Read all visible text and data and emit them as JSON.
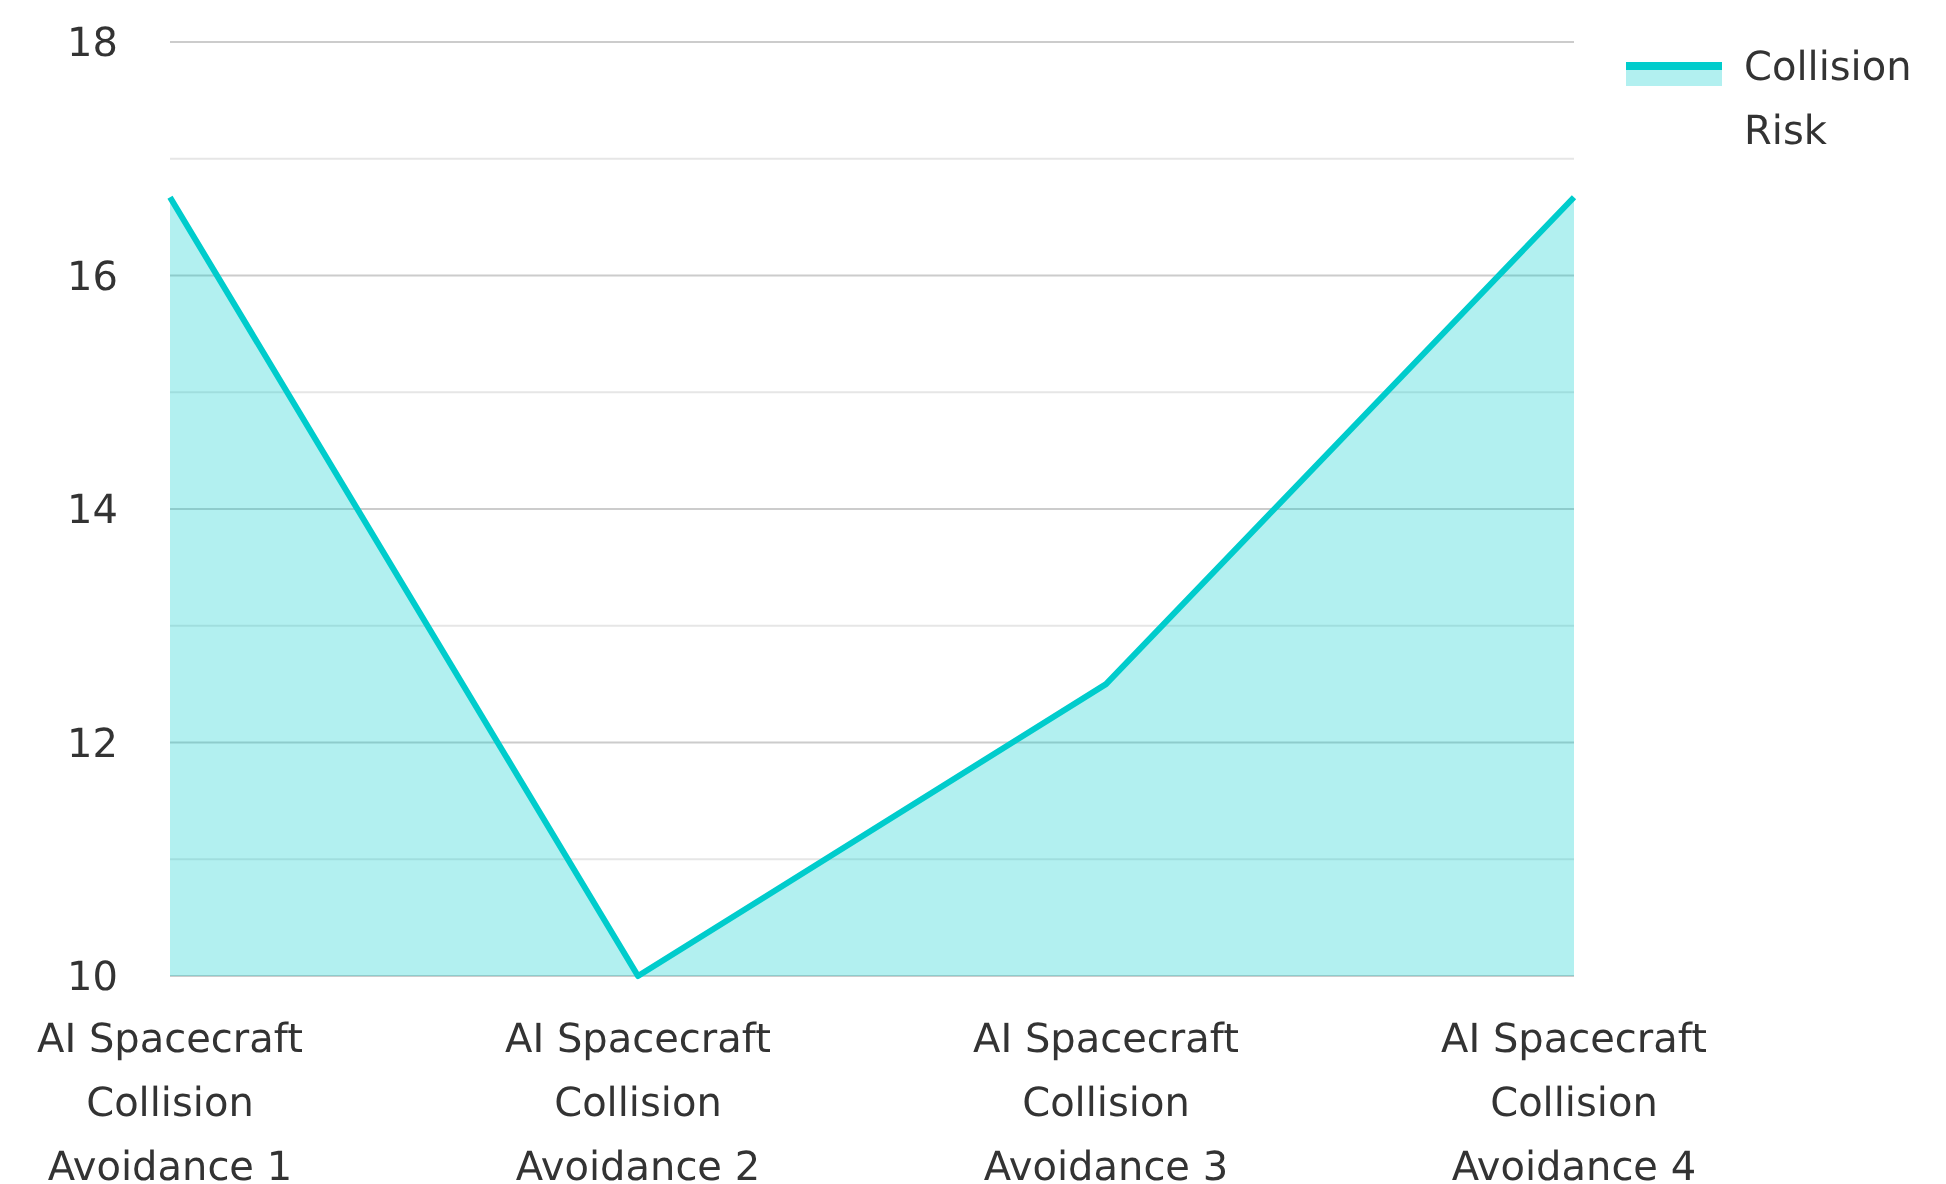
{
  "chart_data": {
    "type": "area",
    "categories": [
      "AI Spacecraft Collision Avoidance 1",
      "AI Spacecraft Collision Avoidance 2",
      "AI Spacecraft Collision Avoidance 3",
      "AI Spacecraft Collision Avoidance 4"
    ],
    "series": [
      {
        "name": "Collision Risk",
        "color": "#00cccc",
        "values": [
          16.67,
          10,
          12.5,
          16.67
        ]
      }
    ],
    "ylim": [
      10,
      18
    ],
    "yticks": [
      10,
      {
        "value": 11,
        "label": null
      },
      12,
      {
        "value": 13,
        "label": null
      },
      14,
      {
        "value": 15,
        "label": null
      },
      16,
      {
        "value": 17,
        "label": null
      },
      18
    ],
    "grid": "y",
    "legend": "top right"
  }
}
